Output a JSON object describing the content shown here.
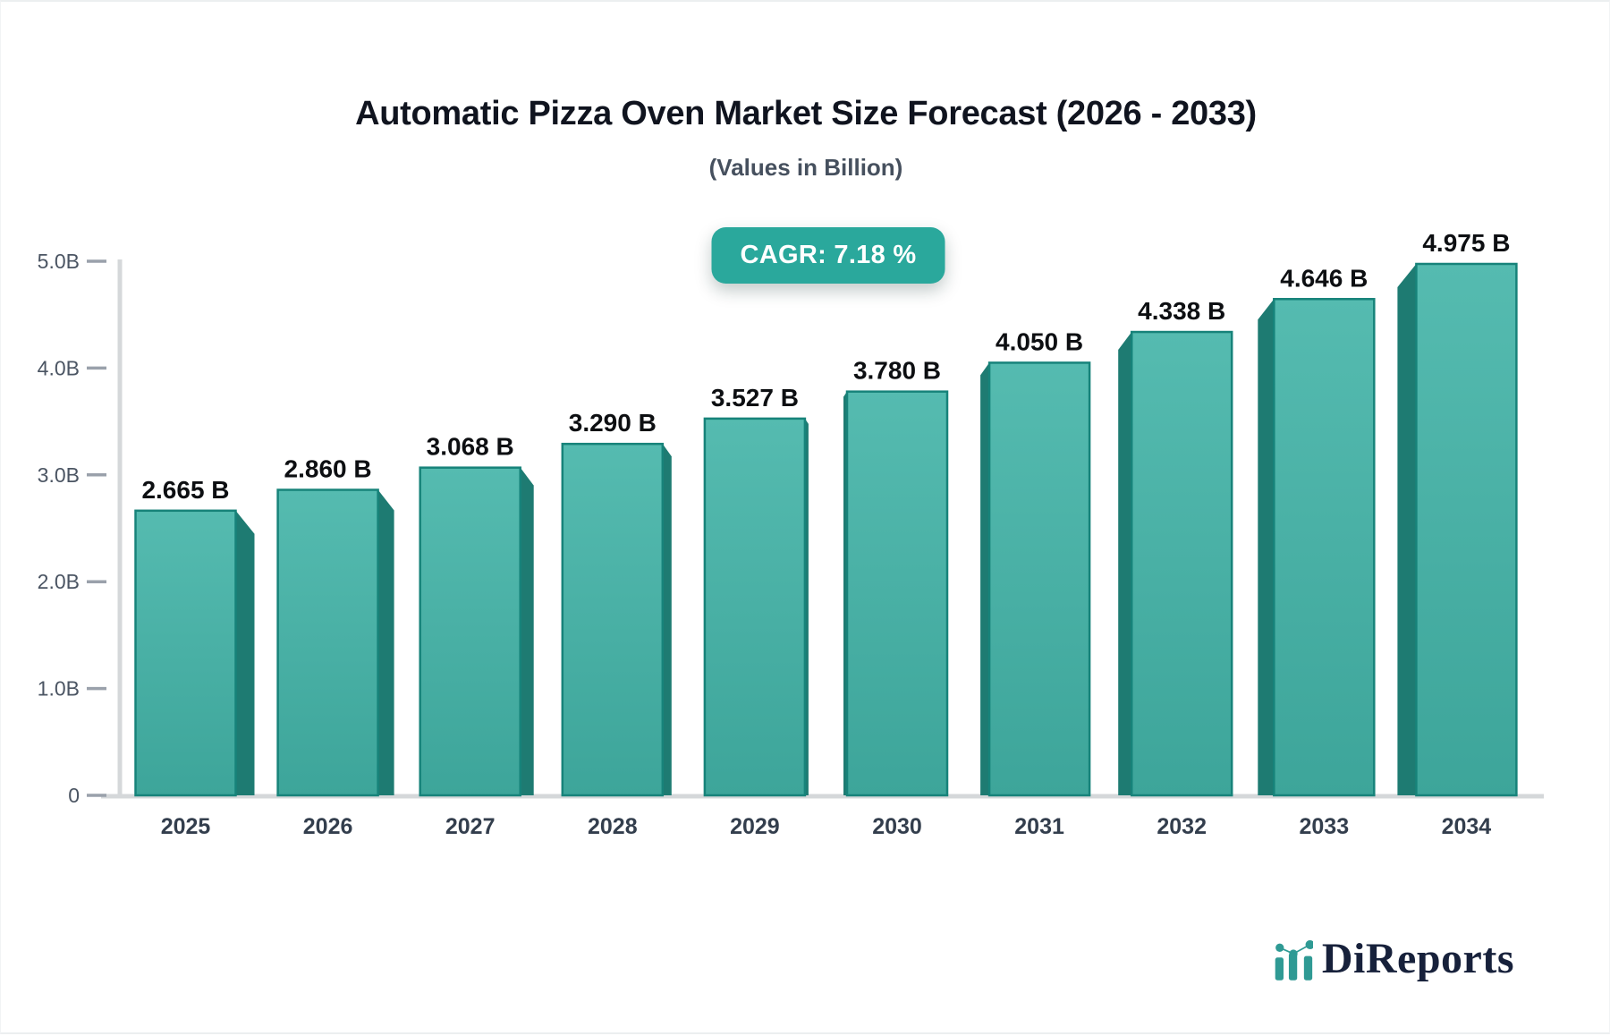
{
  "header": {
    "title": "Automatic Pizza Oven Market Size Forecast (2026 - 2033)",
    "subtitle": "(Values in Billion)"
  },
  "badge": {
    "label": "CAGR: 7.18 %",
    "bg": "#2aa89c",
    "text_color": "#ffffff"
  },
  "chart_data": {
    "type": "bar",
    "title": "Automatic Pizza Oven Market Size Forecast (2026 - 2033)",
    "subtitle": "(Values in Billion)",
    "categories": [
      "2025",
      "2026",
      "2027",
      "2028",
      "2029",
      "2030",
      "2031",
      "2032",
      "2033",
      "2034"
    ],
    "values": [
      2.665,
      2.86,
      3.068,
      3.29,
      3.527,
      3.78,
      4.05,
      4.338,
      4.646,
      4.975
    ],
    "value_labels": [
      "2.665 B",
      "2.860 B",
      "3.068 B",
      "3.290 B",
      "3.527 B",
      "3.780 B",
      "4.050 B",
      "4.338 B",
      "4.646 B",
      "4.975 B"
    ],
    "xlabel": "",
    "ylabel": "",
    "ylim": [
      0,
      5
    ],
    "grid": false,
    "legend": false,
    "yticks": [
      {
        "value": 0,
        "label": "0"
      },
      {
        "value": 1,
        "label": "1.0B"
      },
      {
        "value": 2,
        "label": "2.0B"
      },
      {
        "value": 3,
        "label": "3.0B"
      },
      {
        "value": 4,
        "label": "4.0B"
      },
      {
        "value": 5,
        "label": "5.0B"
      }
    ],
    "colors": {
      "bar_face_top": "#55bbb0",
      "bar_face_bottom": "#3da59a",
      "bar_side": "#1e7b72",
      "bar_border": "#17837a",
      "axis_line": "#d5d8da",
      "tick_dash": "#9aa1ab",
      "tick_label": "#4b5563",
      "year_label": "#333e4d",
      "value_label": "#0d0f12"
    }
  },
  "logo": {
    "text": "DiReports",
    "icon": "mini-bar-line-chart-icon",
    "icon_color": "#2f9a94",
    "text_color": "#17213b"
  }
}
